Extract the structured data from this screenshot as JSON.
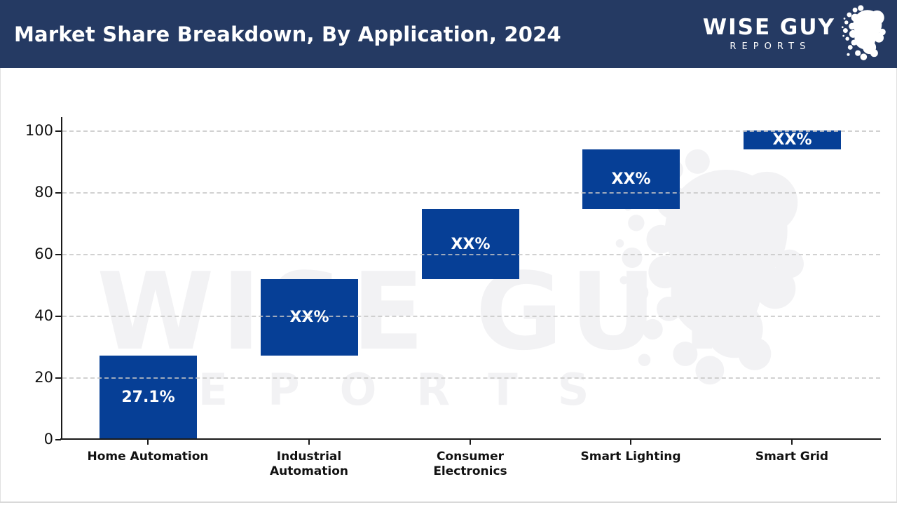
{
  "header": {
    "title": "Market Share Breakdown, By Application, 2024",
    "bg_color": "#253a63",
    "logo": {
      "line1": "WISE GUY",
      "line2": "REPORTS"
    }
  },
  "watermark": {
    "line1": "WISE GUY",
    "line2": "REPORTS"
  },
  "chart_data": {
    "type": "bar",
    "variant": "waterfall-floating-bars",
    "title": "Market Share Breakdown, By Application, 2024",
    "categories": [
      "Home Automation",
      "Industrial Automation",
      "Consumer Electronics",
      "Smart Lighting",
      "Smart Grid"
    ],
    "segments": [
      {
        "category": "Home Automation",
        "start": 0,
        "end": 27.1,
        "label": "27.1%"
      },
      {
        "category": "Industrial Automation",
        "start": 27.1,
        "end": 51.8,
        "label": "XX%"
      },
      {
        "category": "Consumer Electronics",
        "start": 51.8,
        "end": 74.5,
        "label": "XX%"
      },
      {
        "category": "Smart Lighting",
        "start": 74.5,
        "end": 93.9,
        "label": "XX%"
      },
      {
        "category": "Smart Grid",
        "start": 93.9,
        "end": 100,
        "label": "XX%"
      }
    ],
    "xlabel": "",
    "ylabel": "",
    "ylim": [
      0,
      100
    ],
    "yticks": [
      0,
      20,
      40,
      60,
      80,
      100
    ],
    "grid": "horizontal-dashed-above-bars",
    "legend": "none",
    "bar_color": "#063f96",
    "bar_label_color": "#ffffff",
    "axis_color": "#1a1a1a"
  }
}
